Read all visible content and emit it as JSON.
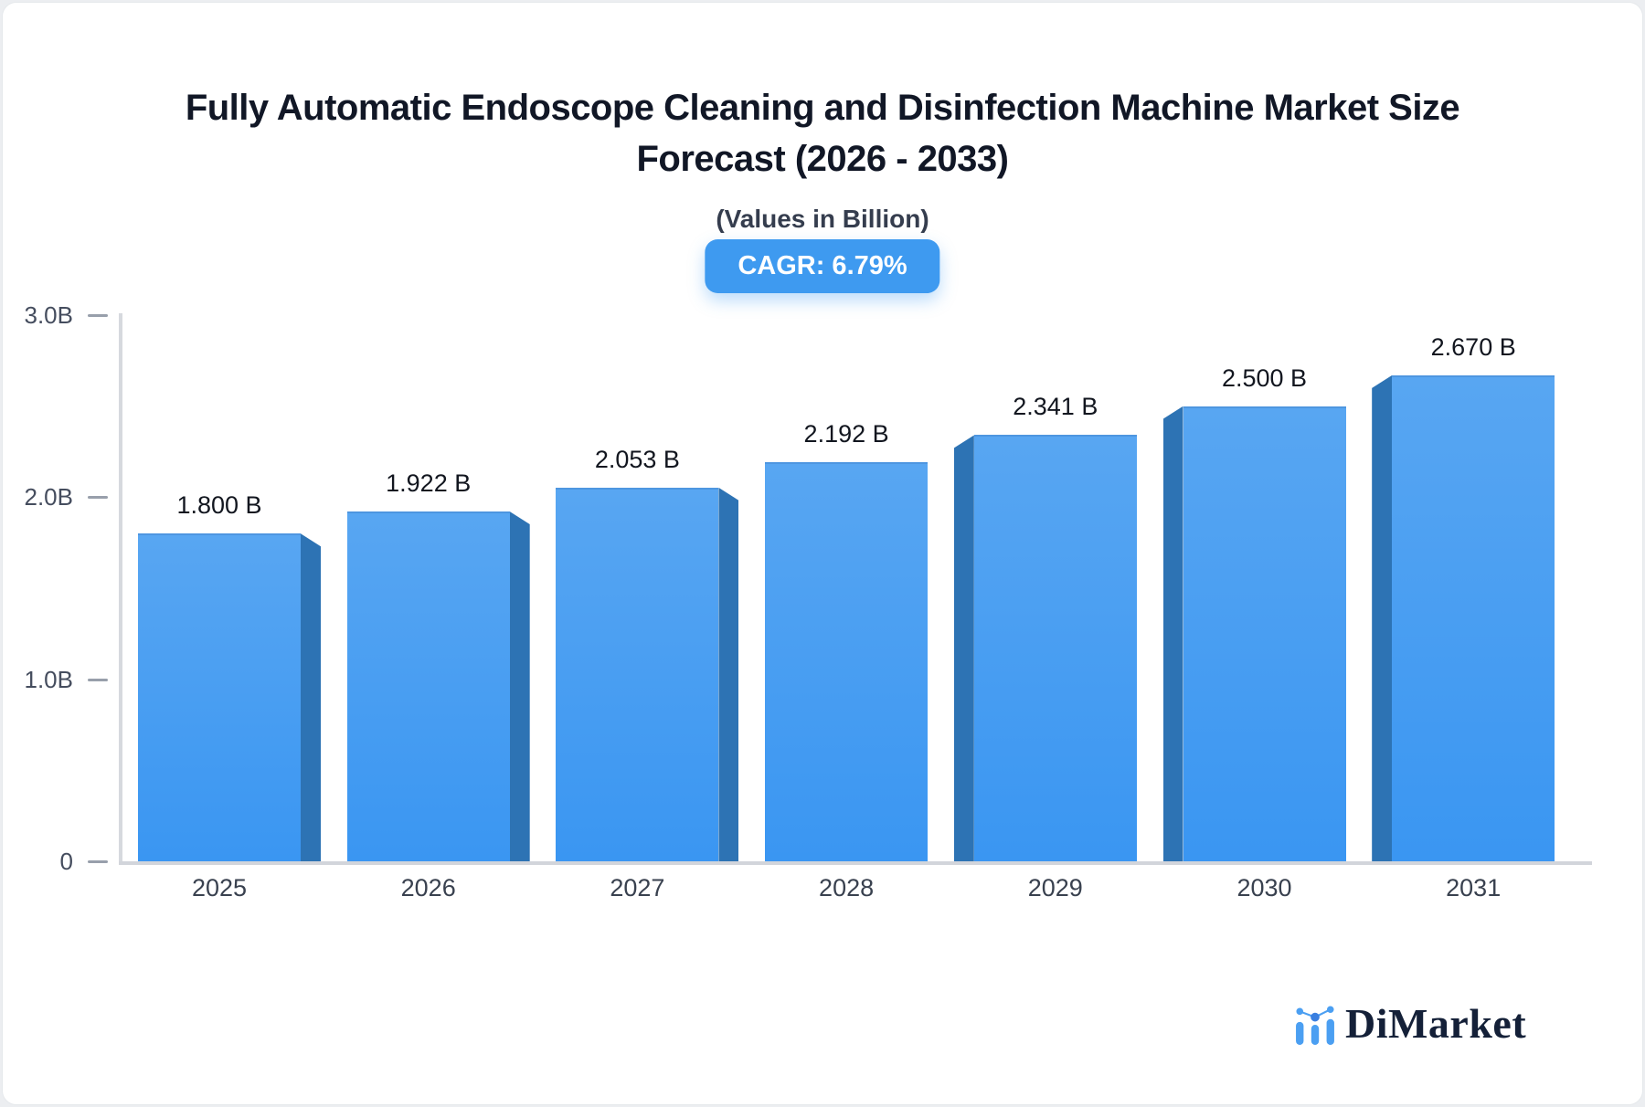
{
  "header": {
    "title_line1": "Fully Automatic Endoscope Cleaning and Disinfection Machine Market Size",
    "title_line2": "Forecast (2026 - 2033)",
    "subtitle": "(Values in Billion)",
    "cagr_badge": "CAGR: 6.79%"
  },
  "chart_data": {
    "type": "bar",
    "title": "Fully Automatic Endoscope Cleaning and Disinfection Machine Market Size Forecast (2026 - 2033)",
    "subtitle": "(Values in Billion)",
    "cagr_percent": 6.79,
    "categories": [
      "2025",
      "2026",
      "2027",
      "2028",
      "2029",
      "2030",
      "2031"
    ],
    "values": [
      1.8,
      1.922,
      2.053,
      2.192,
      2.341,
      2.5,
      2.67
    ],
    "value_labels": [
      "1.800 B",
      "1.922 B",
      "2.053 B",
      "2.192 B",
      "2.341 B",
      "2.500 B",
      "2.670 B"
    ],
    "xlabel": "",
    "ylabel": "",
    "ylim": [
      0,
      3.0
    ],
    "y_ticks": [
      {
        "label": "3.0B",
        "value": 3.0
      },
      {
        "label": "2.0B",
        "value": 2.0
      },
      {
        "label": "1.0B",
        "value": 1.0
      },
      {
        "label": "0",
        "value": 0.0
      }
    ],
    "grid": false,
    "legend": null,
    "colors": {
      "bar_top": "#58a6f2",
      "bar_bottom": "#3a96f2",
      "bar_side": "#2d73b4",
      "badge_blue": "#3e9af0",
      "axis_line": "#d5d8dd",
      "tick_text": "#454d5e",
      "label_text": "#12161f"
    }
  },
  "branding": {
    "logo_text": "DiMarket",
    "logo_icon": "bar-line-chart-icon"
  }
}
